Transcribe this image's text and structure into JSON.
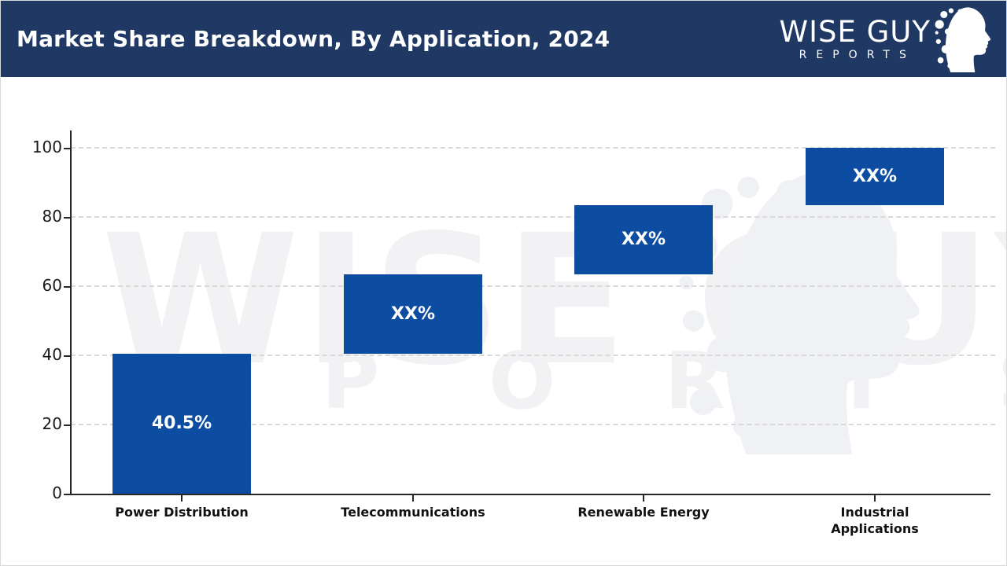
{
  "header": {
    "title": "Market Share Breakdown, By Application, 2024",
    "logo": {
      "line1": "WISE GUY",
      "line2": "REPORTS"
    }
  },
  "watermark": {
    "line1": "WISE GUY",
    "line2": "P O R T S"
  },
  "chart_data": {
    "type": "bar",
    "subtype": "waterfall",
    "title": "Market Share Breakdown, By Application, 2024",
    "categories": [
      "Power Distribution",
      "Telecommunications",
      "Renewable Energy",
      "Industrial Applications"
    ],
    "bars": [
      {
        "category": "Power Distribution",
        "start": 0,
        "end": 40.5,
        "label": "40.5%"
      },
      {
        "category": "Telecommunications",
        "start": 40.5,
        "end": 63.5,
        "label": "XX%"
      },
      {
        "category": "Renewable Energy",
        "start": 63.5,
        "end": 83.5,
        "label": "XX%"
      },
      {
        "category": "Industrial Applications",
        "start": 83.5,
        "end": 100,
        "label": "XX%"
      }
    ],
    "yticks": [
      0,
      20,
      40,
      60,
      80,
      100
    ],
    "ylim": [
      0,
      105
    ],
    "grid": "dashed-horizontal",
    "legend": "none",
    "bar_color": "#0c4da2",
    "bar_label_color": "#ffffff"
  },
  "colors": {
    "header_navy": "#1f3864",
    "bar_blue": "#0c4da2",
    "grid_gray": "#d9d9d9",
    "axis_dark": "#262626",
    "watermark_gray": "#f2f2f4"
  }
}
